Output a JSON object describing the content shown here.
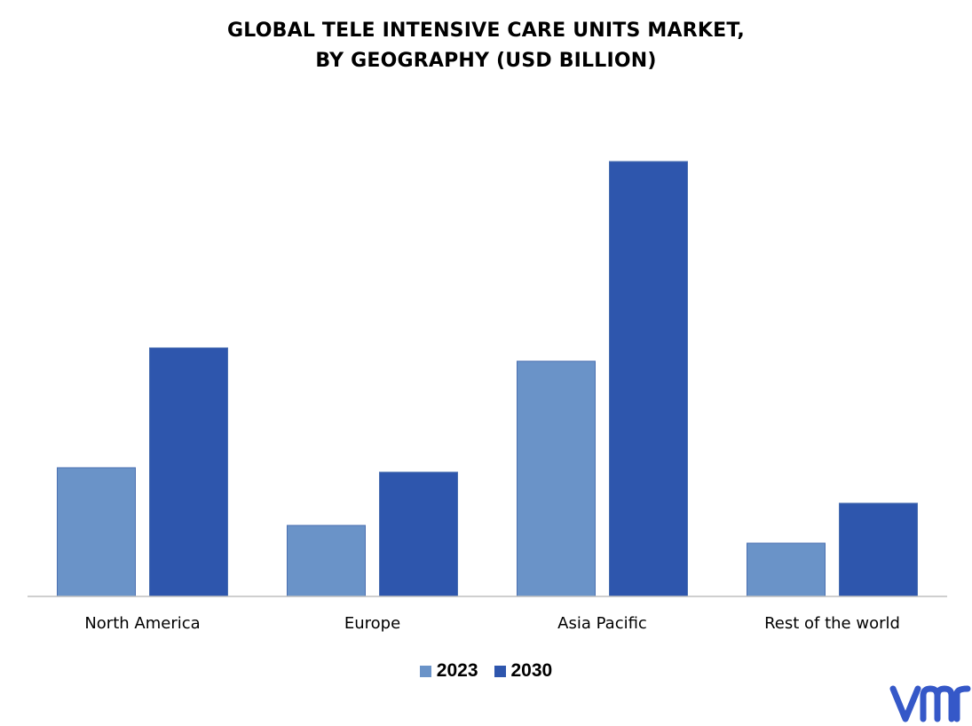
{
  "chart_data": {
    "type": "bar",
    "title_line1": "GLOBAL TELE INTENSIVE CARE UNITS MARKET,",
    "title_line2": "BY GEOGRAPHY (USD BILLION)",
    "categories": [
      "North America",
      "Europe",
      "Asia Pacific",
      "Rest of the world"
    ],
    "series": [
      {
        "name": "2023",
        "values": [
          2.9,
          1.6,
          5.3,
          1.2
        ],
        "color": "#6a93c8"
      },
      {
        "name": "2030",
        "values": [
          5.6,
          2.8,
          9.8,
          2.1
        ],
        "color": "#2e56ad"
      }
    ],
    "ylim": [
      0,
      11
    ],
    "grid": false,
    "legend_position": "bottom"
  },
  "branding": {
    "logo_icon": "vmr-logo-icon",
    "logo_text": "VMR",
    "logo_color": "#3558c8"
  }
}
